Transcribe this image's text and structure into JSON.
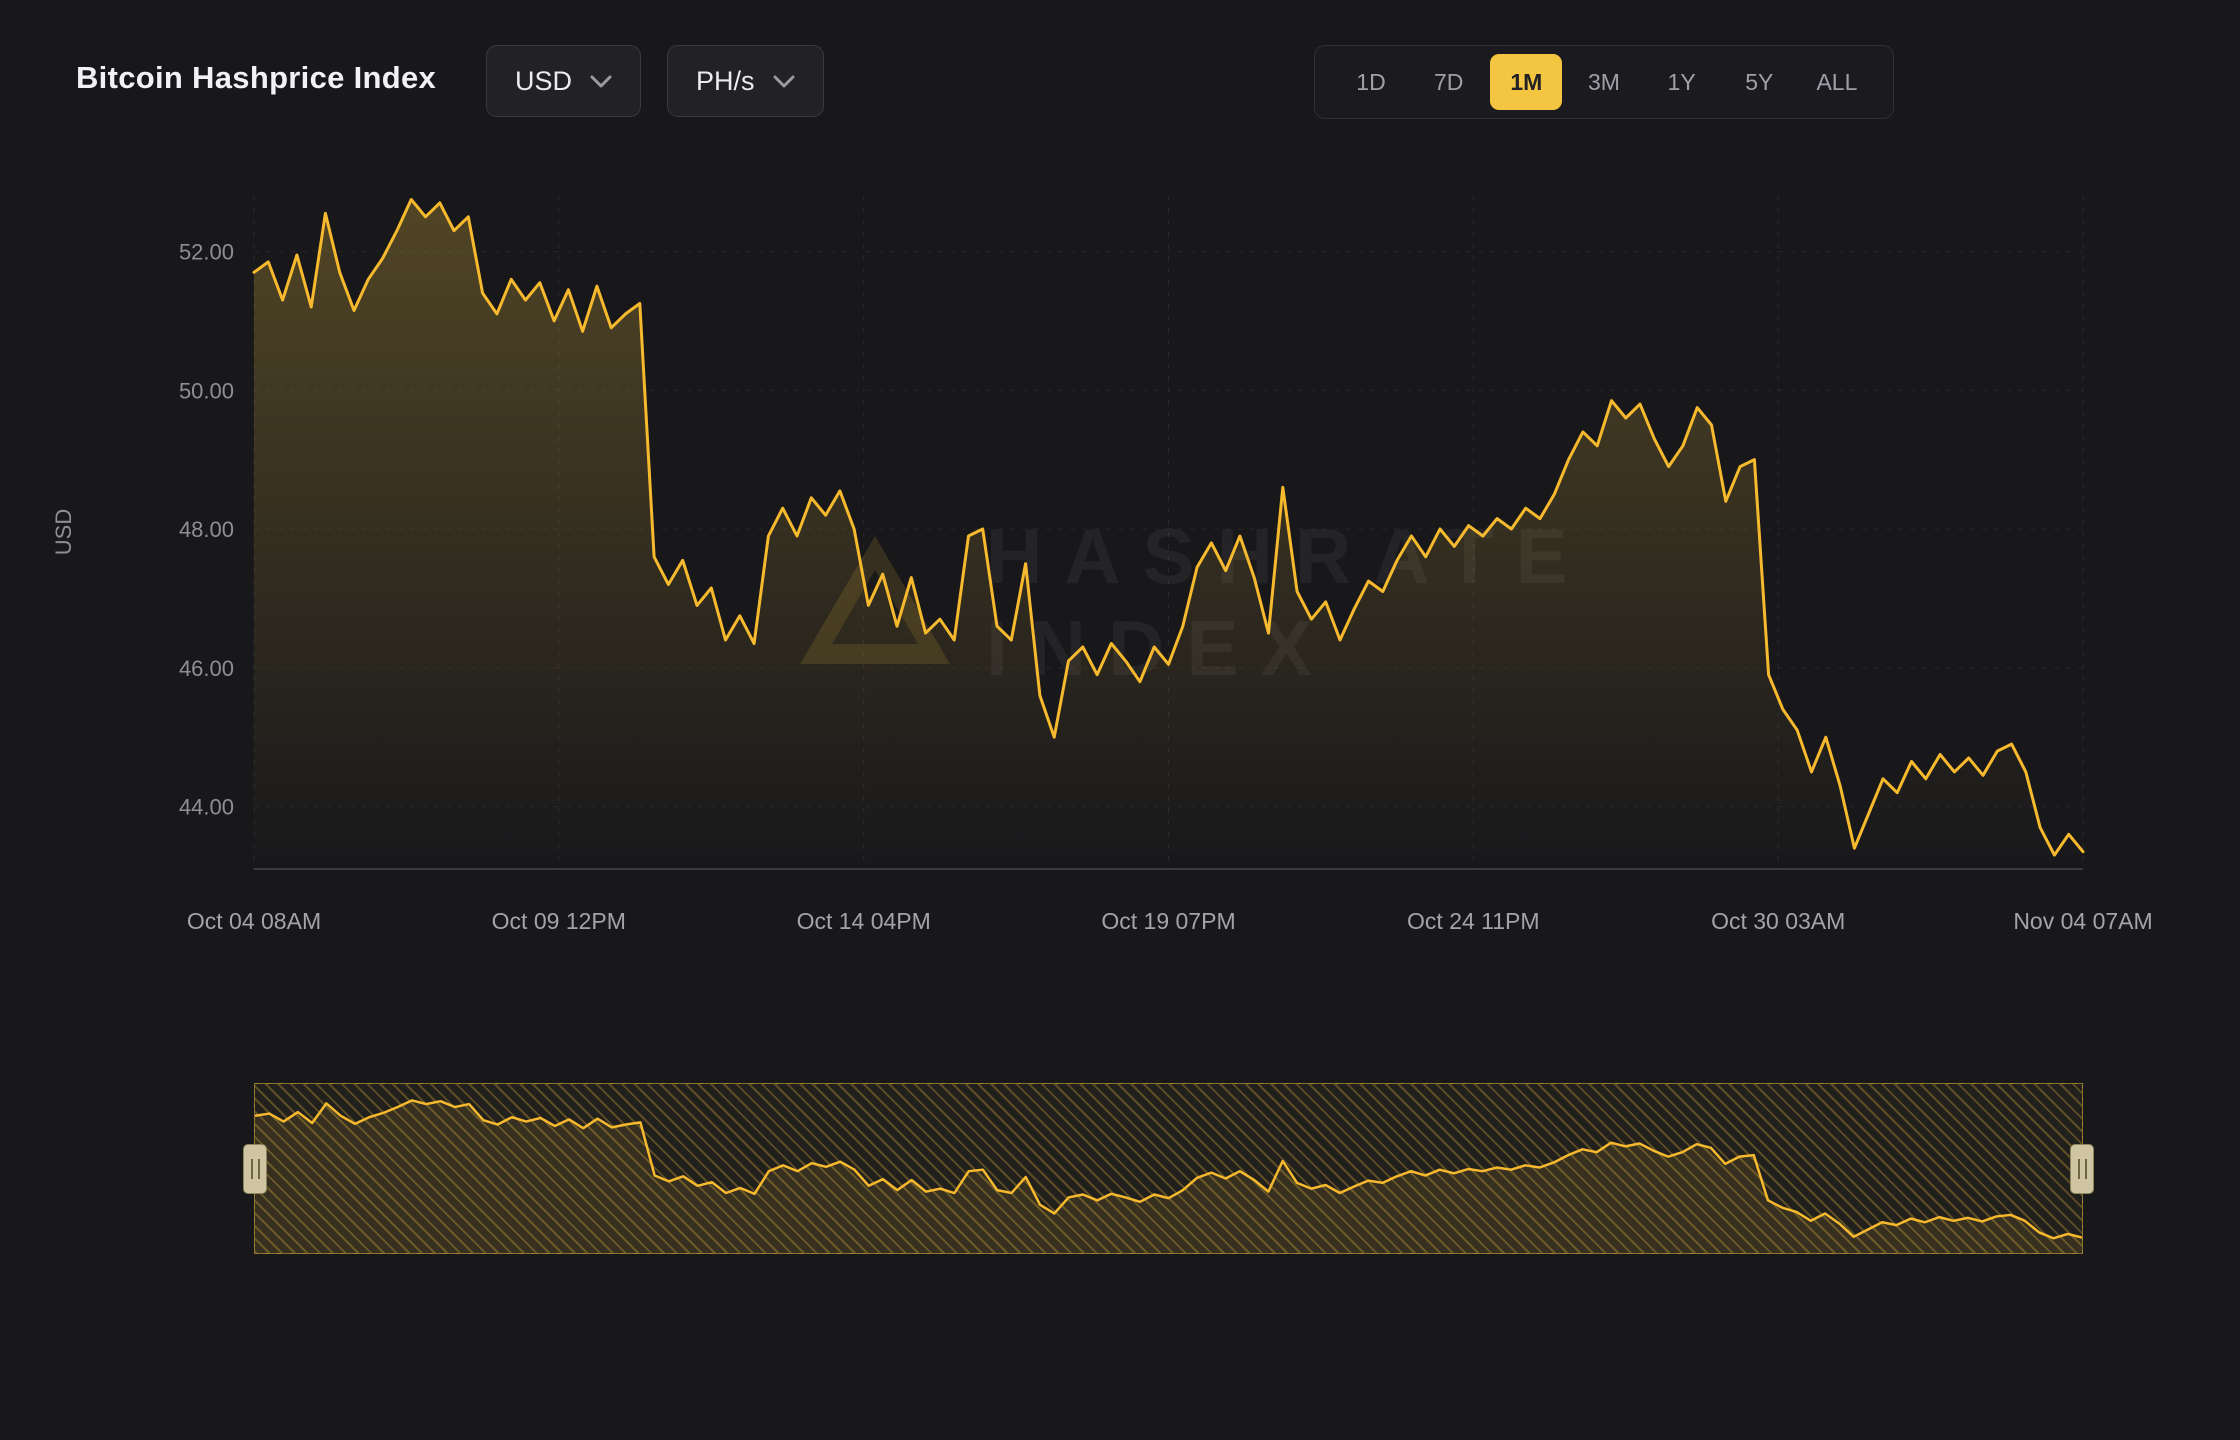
{
  "header": {
    "title": "Bitcoin Hashprice Index",
    "currency_dropdown": {
      "value": "USD"
    },
    "unit_dropdown": {
      "value": "PH/s"
    },
    "ranges": [
      {
        "label": "1D",
        "selected": false
      },
      {
        "label": "7D",
        "selected": false
      },
      {
        "label": "1M",
        "selected": true
      },
      {
        "label": "3M",
        "selected": false
      },
      {
        "label": "1Y",
        "selected": false
      },
      {
        "label": "5Y",
        "selected": false
      },
      {
        "label": "ALL",
        "selected": false
      }
    ]
  },
  "watermark": {
    "line1": "HASHRATE",
    "line2": "INDEX"
  },
  "colors": {
    "background": "#18181b",
    "accent": "#f3c540",
    "line": "#f7b92d",
    "selected_range_bg": "#f3c540",
    "axis_text": "#8e8e95"
  },
  "chart_data": {
    "type": "line",
    "title": "Bitcoin Hashprice Index",
    "ylabel": "USD",
    "ylim": [
      43.1,
      52.8
    ],
    "grid": true,
    "legend": false,
    "line_color": "#f7b92d",
    "yticks": [
      {
        "value": 44,
        "label": "44.00"
      },
      {
        "value": 46,
        "label": "46.00"
      },
      {
        "value": 48,
        "label": "48.00"
      },
      {
        "value": 50,
        "label": "50.00"
      },
      {
        "value": 52,
        "label": "52.00"
      }
    ],
    "xticks": [
      "Oct 04 08AM",
      "Oct 09 12PM",
      "Oct 14 04PM",
      "Oct 19 07PM",
      "Oct 24 11PM",
      "Oct 30 03AM",
      "Nov 04 07AM"
    ],
    "x_range": [
      "Oct 04 08AM",
      "Nov 04 07AM"
    ],
    "values": [
      51.7,
      51.85,
      51.3,
      51.95,
      51.2,
      52.55,
      51.7,
      51.15,
      51.6,
      51.9,
      52.3,
      52.75,
      52.5,
      52.7,
      52.3,
      52.5,
      51.4,
      51.1,
      51.6,
      51.3,
      51.55,
      51.0,
      51.45,
      50.85,
      51.5,
      50.9,
      51.1,
      51.25,
      47.6,
      47.2,
      47.55,
      46.9,
      47.15,
      46.4,
      46.75,
      46.35,
      47.9,
      48.3,
      47.9,
      48.45,
      48.2,
      48.55,
      48.0,
      46.9,
      47.35,
      46.6,
      47.3,
      46.5,
      46.7,
      46.4,
      47.9,
      48.0,
      46.6,
      46.4,
      47.5,
      45.6,
      45.0,
      46.1,
      46.3,
      45.9,
      46.35,
      46.1,
      45.8,
      46.3,
      46.05,
      46.6,
      47.45,
      47.8,
      47.4,
      47.9,
      47.3,
      46.5,
      48.6,
      47.1,
      46.7,
      46.95,
      46.4,
      46.85,
      47.25,
      47.1,
      47.55,
      47.9,
      47.6,
      48.0,
      47.75,
      48.05,
      47.9,
      48.15,
      48.0,
      48.3,
      48.15,
      48.5,
      49.0,
      49.4,
      49.2,
      49.85,
      49.6,
      49.8,
      49.3,
      48.9,
      49.2,
      49.75,
      49.5,
      48.4,
      48.9,
      49.0,
      45.9,
      45.4,
      45.1,
      44.5,
      45.0,
      44.3,
      43.4,
      43.9,
      44.4,
      44.2,
      44.65,
      44.4,
      44.75,
      44.5,
      44.7,
      44.45,
      44.8,
      44.9,
      44.5,
      43.7,
      43.3,
      43.6,
      43.35
    ]
  }
}
